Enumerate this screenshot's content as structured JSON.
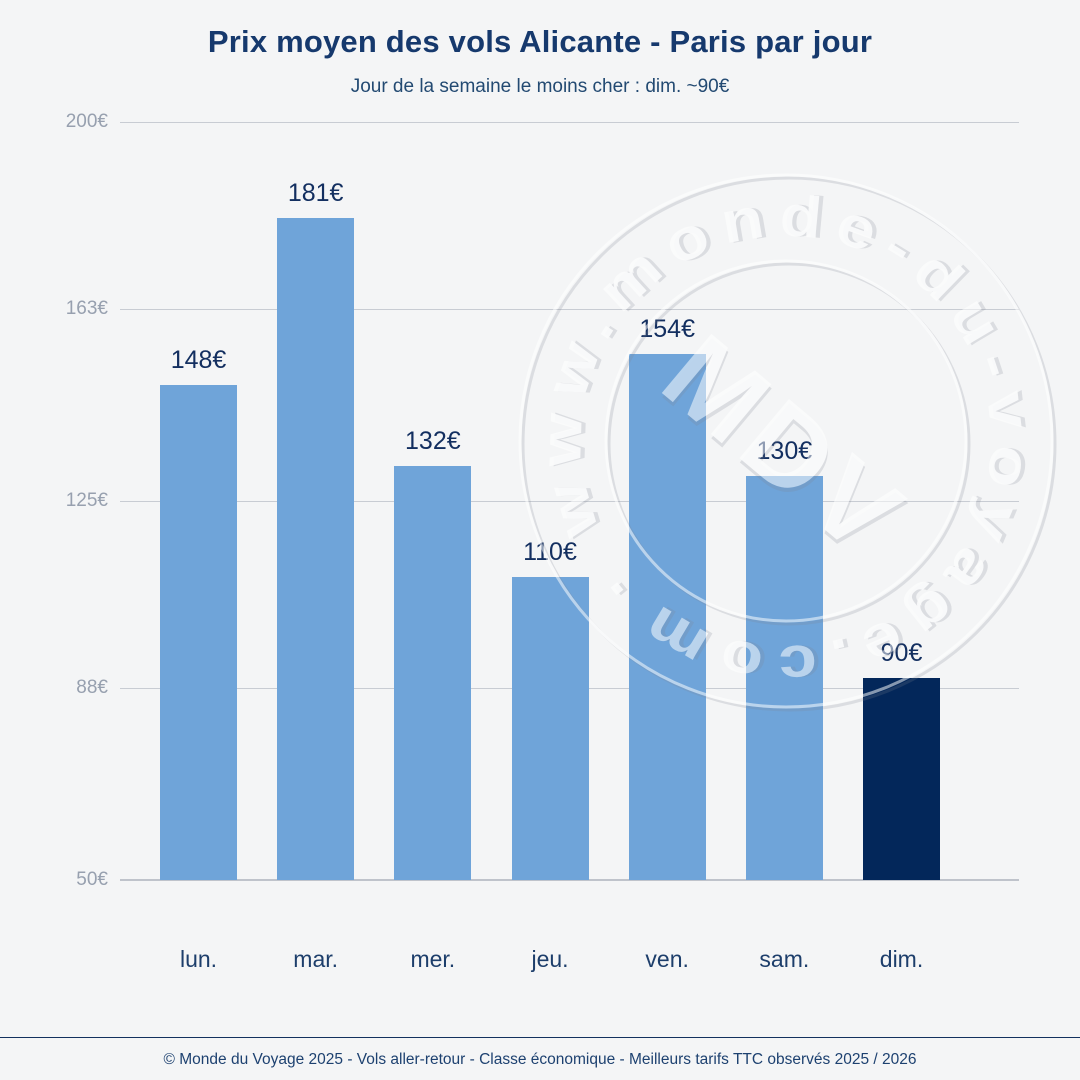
{
  "chart_data": {
    "type": "bar",
    "title": "Prix moyen des vols Alicante - Paris par jour",
    "subtitle": "Jour de la semaine le moins cher : dim. ~90€",
    "categories": [
      "lun.",
      "mar.",
      "mer.",
      "jeu.",
      "ven.",
      "sam.",
      "dim."
    ],
    "values": [
      148,
      181,
      132,
      110,
      154,
      130,
      90
    ],
    "value_labels": [
      "148€",
      "181€",
      "132€",
      "110€",
      "154€",
      "130€",
      "90€"
    ],
    "ylim": [
      50,
      200
    ],
    "y_ticks": [
      {
        "label": "200€",
        "value": 200
      },
      {
        "label": "163€",
        "value": 163
      },
      {
        "label": "125€",
        "value": 125
      },
      {
        "label": "88€",
        "value": 88
      },
      {
        "label": "50€",
        "value": 50
      }
    ],
    "grid": true,
    "legend": false,
    "bar_color": "#6fa4d9",
    "highlight_bar_color": "#03275a",
    "highlight_index": 6
  },
  "watermark": {
    "ring_text": "· www.monde-du-voyage.com",
    "center_text": "MDV"
  },
  "footer": {
    "text": "© Monde du Voyage 2025 - Vols aller-retour - Classe économique - Meilleurs tarifs TTC observés 2025 / 2026"
  }
}
